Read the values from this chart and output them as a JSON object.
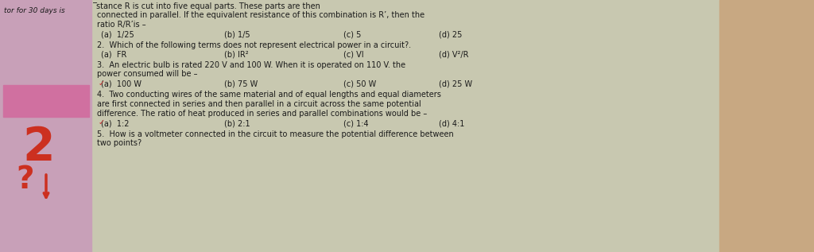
{
  "bg_color": "#b8c9a0",
  "left_panel_bg": "#c8a0b8",
  "page_bg": "#c8c8b0",
  "text_color": "#1a1a1a",
  "left_text": "tor for 30 days is",
  "checkmark_color": "#cc3333",
  "right_panel_color": "#c8a882",
  "pink_rect_color": "#d070a0",
  "arrow_color": "#cc3020",
  "q1_line1": "̅stance R is cut into five equal parts. These parts are then",
  "q1_line2": "connected in parallel. If the equivalent resistance of this combination is R’, then the",
  "q1_line3": "ratio R/R’is –",
  "q1_opts": [
    "(a)  1/25",
    "(b) 1/5",
    "(c) 5",
    "(d) 25"
  ],
  "q2_line1": "2.  Which of the following terms does not represent electrical power in a circuit?.",
  "q2_opts": [
    "(a)  FR",
    "(b) IR²",
    "(c) VI",
    "(d) V²/R"
  ],
  "q3_line1": "3.  An electric bulb is rated 220 V and 100 W. When it is operated on 110 V. the",
  "q3_line2": "power consumed will be –",
  "q3_opts": [
    "(a)  100 W",
    "(b) 75 W",
    "(c) 50 W",
    "(d) 25 W"
  ],
  "q4_line1": "4.  Two conducting wires of the same material and of equal lengths and equal diameters",
  "q4_line2": "are first connected in series and then parallel in a circuit across the same potential",
  "q4_line3": "difference. The ratio of heat produced in series and parallel combinations would be –",
  "q4_opts": [
    "(a)  1:2",
    "(b) 2:1",
    "(c) 1:4",
    "(d) 4:1"
  ],
  "q5_line1": "5.  How is a voltmeter connected in the circuit to measure the potential difference between",
  "q5_line2": "two points?",
  "opt_offsets": [
    5,
    160,
    310,
    430
  ]
}
